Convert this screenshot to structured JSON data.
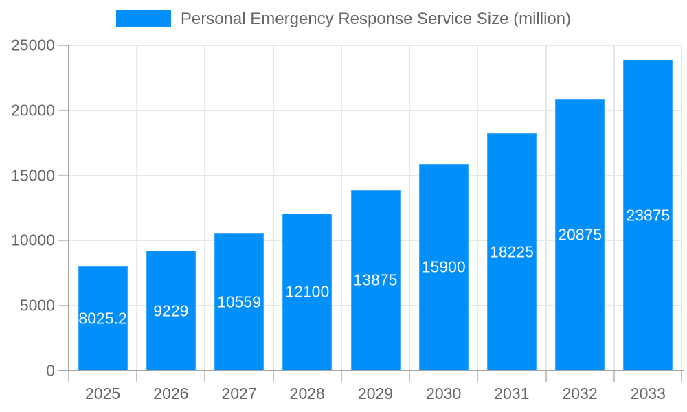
{
  "chart_data": {
    "type": "bar",
    "title": "Personal Emergency Response Service Size (million)",
    "categories": [
      "2025",
      "2026",
      "2027",
      "2028",
      "2029",
      "2030",
      "2031",
      "2032",
      "2033"
    ],
    "values": [
      8025.2,
      9229,
      10559,
      12100,
      13875,
      15900,
      18225,
      20875,
      23875
    ],
    "value_labels": [
      "8025.2",
      "9229",
      "10559",
      "12100",
      "13875",
      "15900",
      "18225",
      "20875",
      "23875"
    ],
    "xlabel": "",
    "ylabel": "",
    "ylim": [
      0,
      25000
    ],
    "y_ticks": [
      0,
      5000,
      10000,
      15000,
      20000,
      25000
    ],
    "y_tick_labels": [
      "0",
      "5000",
      "10000",
      "15000",
      "20000",
      "25000"
    ],
    "grid": true,
    "legend_position": "top",
    "colors": {
      "bar": "#008FFB",
      "bar_edge": "#3fa9fc",
      "grid": "#e7e7e7",
      "axis": "#a3a3a3",
      "tick": "#c2c2c2",
      "label_text": "#666666",
      "value_text": "#ffffff",
      "background": "#ffffff"
    }
  }
}
